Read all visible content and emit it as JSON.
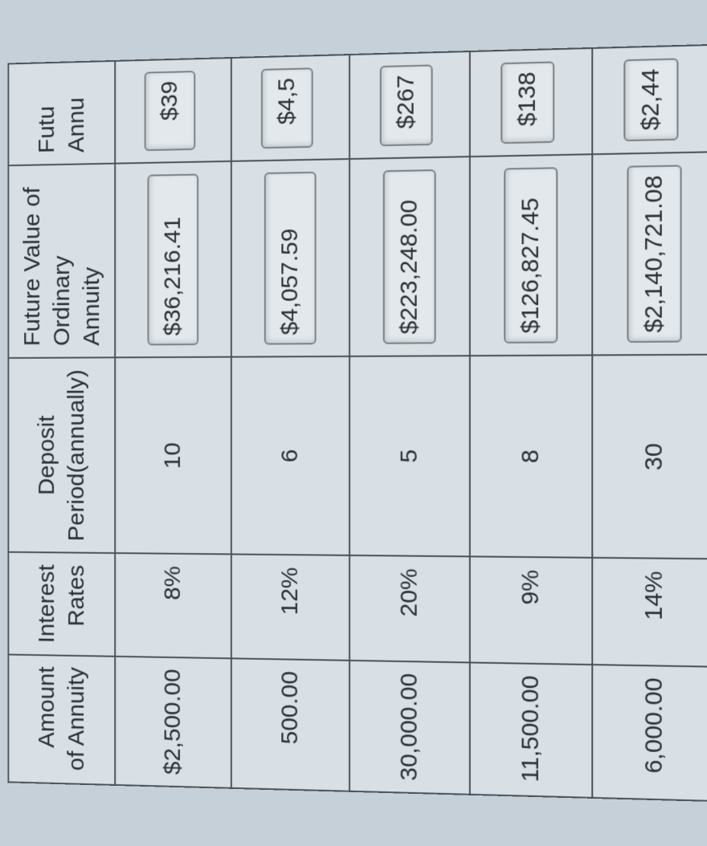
{
  "headers": {
    "amount": "Amount of Annuity",
    "interest": "Interest Rates",
    "deposit": "Deposit Period(annually)",
    "fv": "Future Value of Ordinary Annuity",
    "fut": "Futu Annu"
  },
  "rows": [
    {
      "amount": "$2,500.00",
      "interest": "8%",
      "deposit": "10",
      "fv": "$36,216.41",
      "fut": "$39"
    },
    {
      "amount": "500.00",
      "interest": "12%",
      "deposit": "6",
      "fv": "$4,057.59",
      "fut": "$4,5"
    },
    {
      "amount": "30,000.00",
      "interest": "20%",
      "deposit": "5",
      "fv": "$223,248.00",
      "fut": "$267"
    },
    {
      "amount": "11,500.00",
      "interest": "9%",
      "deposit": "8",
      "fv": "$126,827.45",
      "fut": "$138"
    },
    {
      "amount": "6,000.00",
      "interest": "14%",
      "deposit": "30",
      "fv": "$2,140,721.08",
      "fut": "$2,44"
    }
  ],
  "style": {
    "background_color": "#c5d0d8",
    "cell_background": "#d8e0e6",
    "border_color": "#4a5258",
    "text_color": "#2a2f34",
    "input_border": "#7a8288",
    "input_background": "#e2e8ec",
    "font_size_pt": 22
  }
}
